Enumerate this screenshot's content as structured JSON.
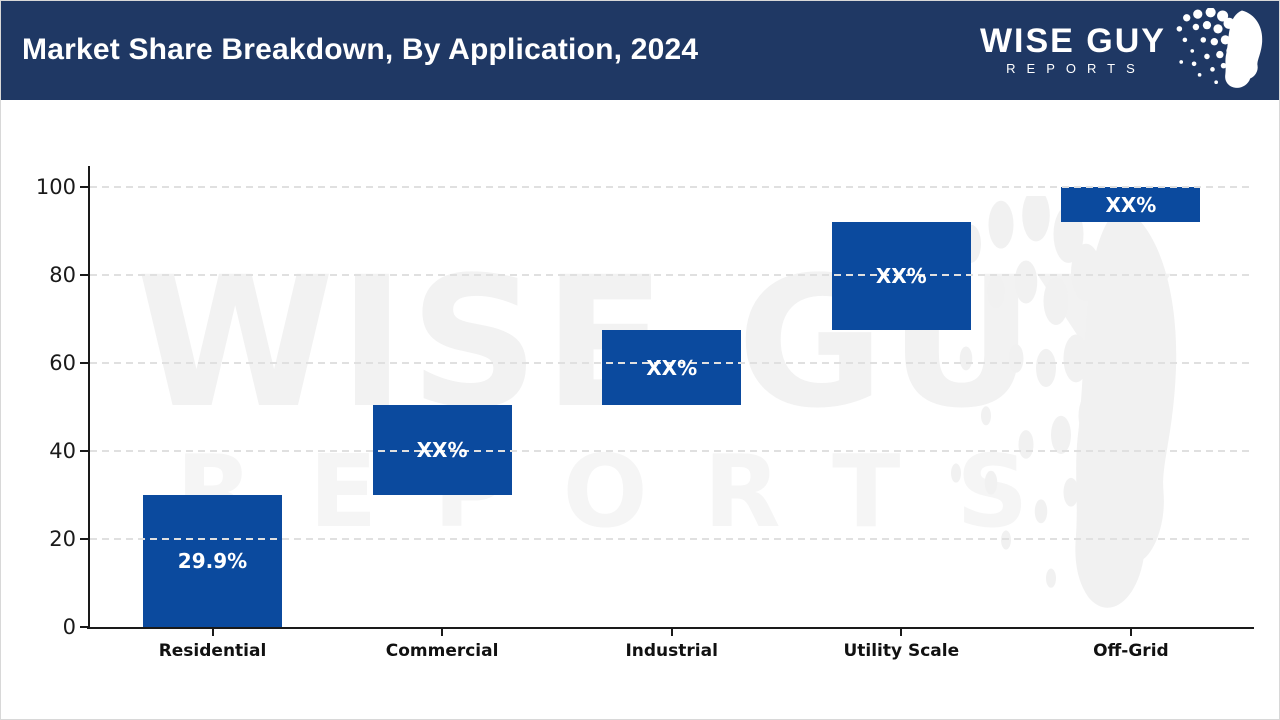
{
  "header": {
    "title": "Market Share Breakdown, By Application, 2024",
    "bg_color": "#1f3864",
    "logo": {
      "line1": "WISE GUY",
      "line2": "REPORTS",
      "icon": "dotted-face-profile-icon"
    }
  },
  "watermark": {
    "line1": "WISE GUY",
    "line2": "REPORTS",
    "icon": "dotted-face-profile-watermark"
  },
  "chart_data": {
    "type": "bar",
    "subtype": "waterfall",
    "title": "Market Share Breakdown, By Application, 2024",
    "categories": [
      "Residential",
      "Commercial",
      "Industrial",
      "Utility Scale",
      "Off-Grid"
    ],
    "segments": [
      {
        "category": "Residential",
        "start": 0,
        "end": 29.9,
        "size": 29.9,
        "value_label": "29.9%"
      },
      {
        "category": "Commercial",
        "start": 29.9,
        "end": 50.4,
        "size": 20.5,
        "value_label": "XX%"
      },
      {
        "category": "Industrial",
        "start": 50.4,
        "end": 67.5,
        "size": 17.1,
        "value_label": "XX%"
      },
      {
        "category": "Utility Scale",
        "start": 67.5,
        "end": 92.0,
        "size": 24.5,
        "value_label": "XX%"
      },
      {
        "category": "Off-Grid",
        "start": 92.0,
        "end": 100.0,
        "size": 8.0,
        "value_label": "XX%"
      }
    ],
    "y_ticks": [
      0,
      20,
      40,
      60,
      80,
      100
    ],
    "ylim": [
      0,
      105
    ],
    "xlabel": "",
    "ylabel": "",
    "grid": "horizontal-dashed",
    "legend": "none",
    "bar_color": "#0b4a9e",
    "axis_color": "#1a1a1a",
    "grid_color": "#e0e0e0",
    "label_color_inside": "#ffffff"
  }
}
